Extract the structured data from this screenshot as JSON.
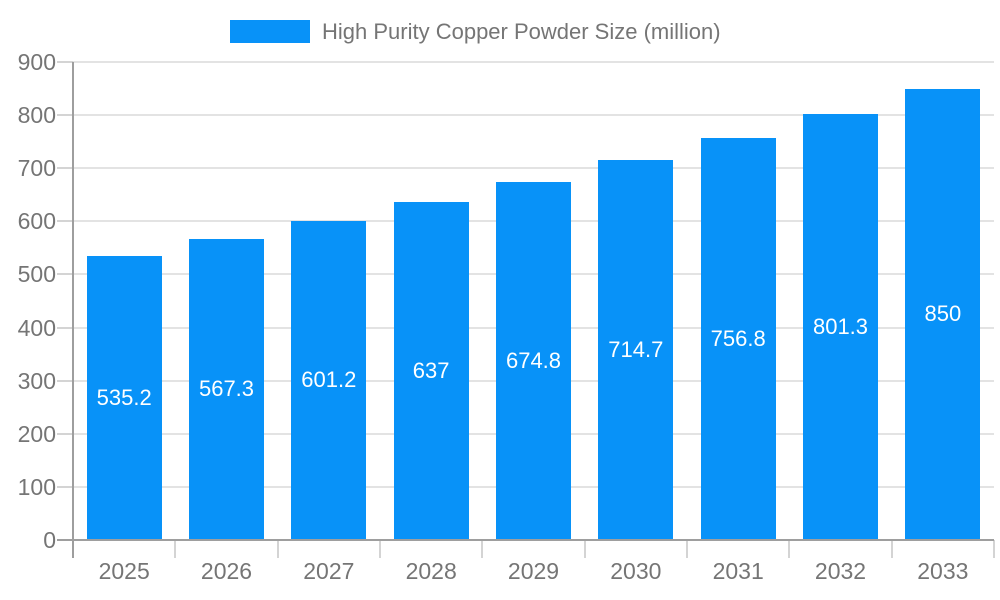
{
  "chart_data": {
    "type": "bar",
    "title": "High Purity Copper Powder Size (million)",
    "categories": [
      "2025",
      "2026",
      "2027",
      "2028",
      "2029",
      "2030",
      "2031",
      "2032",
      "2033"
    ],
    "values": [
      535.2,
      567.3,
      601.2,
      637,
      674.8,
      714.7,
      756.8,
      801.3,
      850
    ],
    "value_labels": [
      "535.2",
      "567.3",
      "601.2",
      "637",
      "674.8",
      "714.7",
      "756.8",
      "801.3",
      "850"
    ],
    "series_name": "High Purity Copper Powder Size (million)",
    "xlabel": "",
    "ylabel": "",
    "ylim": [
      0,
      900
    ],
    "ytick_step": 100,
    "ytick_labels": [
      "0",
      "100",
      "200",
      "300",
      "400",
      "500",
      "600",
      "700",
      "800",
      "900"
    ],
    "grid": true,
    "legend_position": "top",
    "colors": {
      "bar": "#0892F8",
      "bar_label_text": "#FFFFFF",
      "axis_text": "#757575",
      "legend_text": "#757575",
      "gridline": "#E3E3E3",
      "tick": "#D4D4D4",
      "axis_line": "#9E9E9E",
      "background": "#FFFFFF"
    }
  }
}
